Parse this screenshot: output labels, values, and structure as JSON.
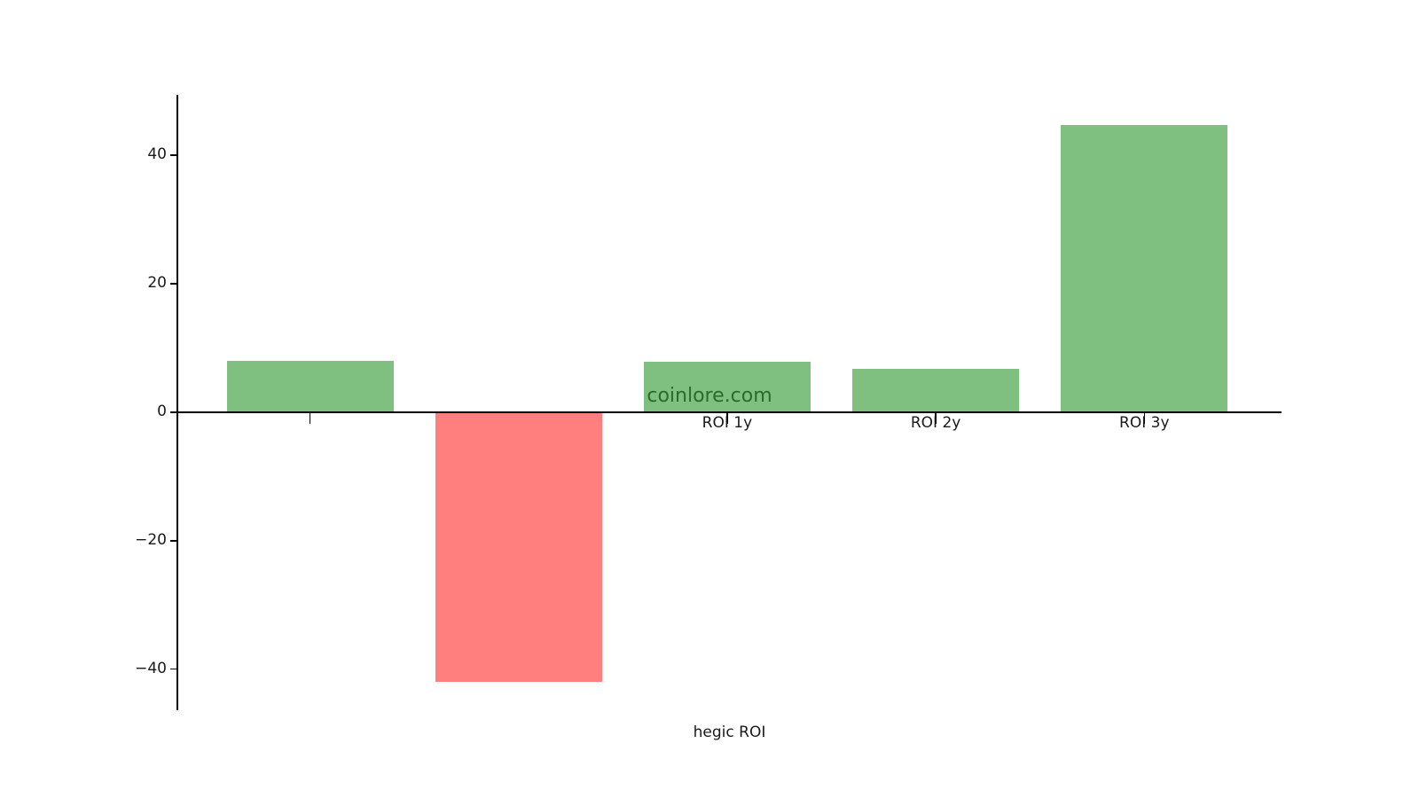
{
  "chart_data": {
    "type": "bar",
    "title": "",
    "xlabel": "hegic ROI",
    "ylabel": "",
    "watermark": "coinlore.com",
    "categories": [
      "",
      "",
      "ROI 1y",
      "ROI 2y",
      "ROI 3y"
    ],
    "values": [
      8,
      -42,
      7.8,
      6.8,
      44.7
    ],
    "y_ticks": [
      40,
      20,
      0,
      -20,
      -40
    ],
    "y_tick_labels": [
      "40",
      "20",
      "0",
      "−20",
      "−40"
    ],
    "ylim": [
      -46.4,
      49.4
    ],
    "grid": false,
    "legend": null,
    "colors": {
      "positive_bar": "#7fbf7f",
      "negative_bar": "#ff7f7f",
      "axis": "#000000",
      "tick_text": "#1a1a1a",
      "watermark_text": "#2a6b2a",
      "background": "#ffffff"
    }
  }
}
